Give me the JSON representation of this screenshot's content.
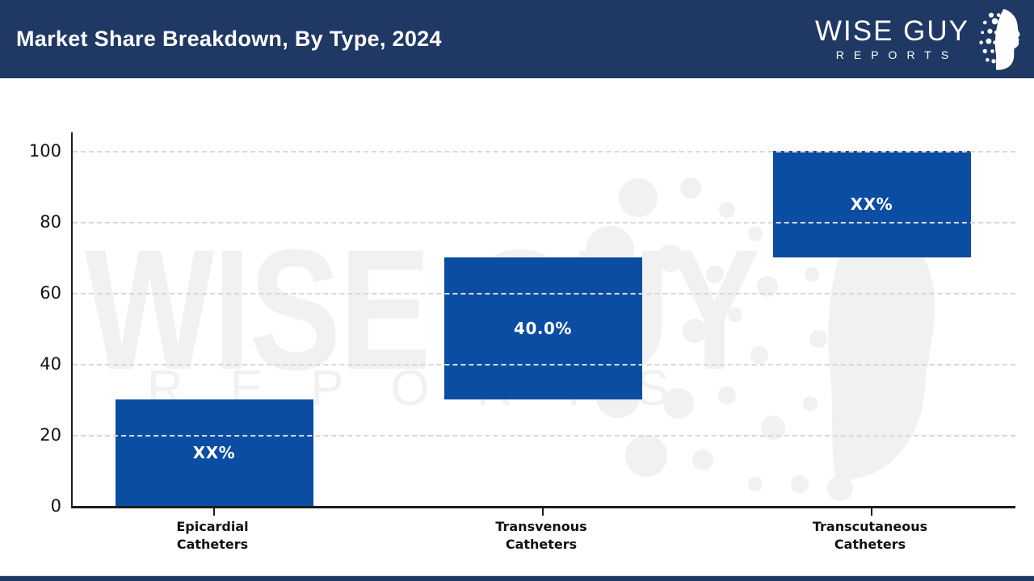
{
  "header": {
    "title": "Market Share Breakdown, By Type, 2024",
    "logo": {
      "line1": "WISE GUY",
      "line2": "REPORTS"
    },
    "bg_color": "#1F3864"
  },
  "watermark": {
    "line1": "WISE GUY",
    "line2": "REPORTS",
    "color": "#f1f1f2"
  },
  "chart_data": {
    "type": "bar",
    "subtype": "floating-segment-columns",
    "title": "Market Share Breakdown, By Type, 2024",
    "categories": [
      "Epicardial\nCatheters",
      "Transvenous\nCatheters",
      "Transcutaneous\nCatheters"
    ],
    "segments": [
      {
        "category": "Epicardial Catheters",
        "start": 0,
        "end": 30,
        "span": 30,
        "label": "XX%"
      },
      {
        "category": "Transvenous Catheters",
        "start": 30,
        "end": 70,
        "span": 40,
        "label": "40.0%"
      },
      {
        "category": "Transcutaneous Catheters",
        "start": 70,
        "end": 100,
        "span": 30,
        "label": "XX%"
      }
    ],
    "yticks": [
      0,
      20,
      40,
      60,
      80,
      100
    ],
    "ylim": [
      0,
      105
    ],
    "xlabel": "",
    "ylabel": "",
    "grid": "horizontal dashed, drawn over bars",
    "legend": "none",
    "bar_color": "#0B4DA2",
    "bar_label_color": "#ffffff",
    "axis_color": "#1c1c1c",
    "gridline_color": "#d8d8d8"
  }
}
